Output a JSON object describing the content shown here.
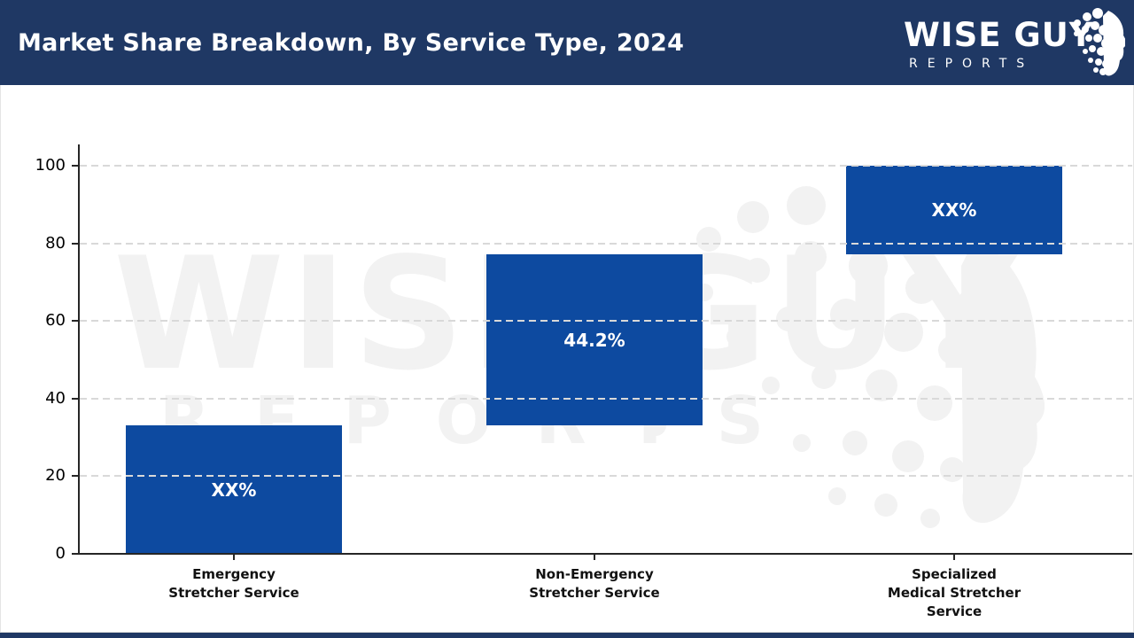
{
  "header": {
    "title": "Market Share Breakdown, By Service Type, 2024",
    "logo": {
      "name": "WISE GUY",
      "tagline": "REPORTS"
    }
  },
  "watermark": {
    "line1": "WISE GUY",
    "line2": "REPORTS"
  },
  "chart_data": {
    "type": "bar",
    "variant": "stacked-waterfall",
    "title": "Market Share Breakdown, By Service Type, 2024",
    "categories": [
      "Emergency Stretcher Service",
      "Non-Emergency Stretcher Service",
      "Specialized Medical Stretcher Service"
    ],
    "category_lines": [
      [
        "Emergency",
        "Stretcher Service"
      ],
      [
        "Non-Emergency",
        "Stretcher Service"
      ],
      [
        "Specialized",
        "Medical Stretcher",
        "Service"
      ]
    ],
    "bars": [
      {
        "start": 0,
        "end": 33,
        "value": 33,
        "label": "XX%"
      },
      {
        "start": 33,
        "end": 77.2,
        "value": 44.2,
        "label": "44.2%"
      },
      {
        "start": 77.2,
        "end": 100,
        "value": 22.8,
        "label": "XX%"
      }
    ],
    "yticks": [
      0,
      20,
      40,
      60,
      80,
      100
    ],
    "ylim": [
      0,
      100
    ],
    "xlabel": "",
    "ylabel": "",
    "grid": {
      "axis": "y",
      "style": "dashed",
      "color": "#d9d9d9"
    },
    "legend": null,
    "colors": {
      "bar": "#0d4aa0",
      "label_text": "#ffffff",
      "axis": "#262626",
      "tick_text": "#000000",
      "header_bg": "#1f3864"
    }
  }
}
